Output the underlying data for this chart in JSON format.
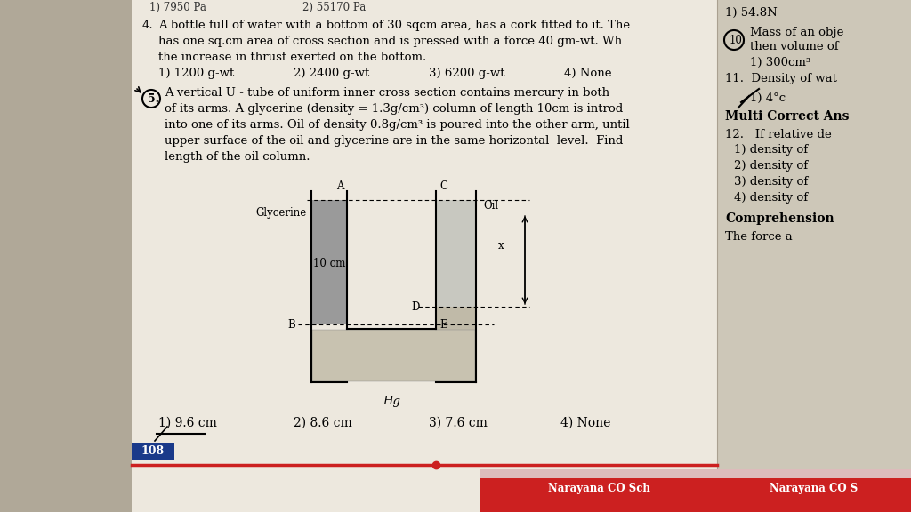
{
  "bg_main": "#d6cfc2",
  "bg_left_shadow": "#b0a898",
  "bg_right_col": "#cec8bb",
  "page_white": "#ede8de",
  "q4_line1": "A bottle full of water with a bottom of 30 sqcm area, has a cork fitted to it. The",
  "q4_line2": "has one sq.cm area of cross section and is pressed with a force 40 gm-wt. Wh",
  "q4_line3": "the increase in thrust exerted on the bottom.",
  "q4_a1": "1) 1200 g-wt",
  "q4_a2": "2) 2400 g-wt",
  "q4_a3": "3) 6200 g-wt",
  "q4_a4": "4) None",
  "q5_line1": "A vertical U - tube of uniform inner cross section contains mercury in both",
  "q5_line2": "of its arms. A glycerine (density = 1.3g/cm³) column of length 10cm is introd",
  "q5_line3": "into one of its arms. Oil of density 0.8g/cm³ is poured into the other arm, until",
  "q5_line4": "upper surface of the oil and glycerine are in the same horizontal  level.  Find",
  "q5_line5": "length of the oil column.",
  "ans1": "1) 9.6 cm",
  "ans2": "2) 8.6 cm",
  "ans3": "3) 7.6 cm",
  "ans4": "4) None",
  "page_num": "108",
  "rc_1": "1) 54.8N",
  "rc_10": "(10.)  Mass of an obje",
  "rc_10b": "then volume of",
  "rc_300": "1) 300cm³",
  "rc_11": "11.  Density of wat",
  "rc_4c": "1) 4°c",
  "rc_multi": "Multi Correct Ans",
  "rc_12": "12.   If relative de",
  "rc_d1": "1) density of",
  "rc_d2": "2) density of",
  "rc_d3": "3) density of",
  "rc_d4": "4) density of",
  "rc_comp": "Comprehension",
  "rc_force": "The force a",
  "nar1": "Narayana CO Sch",
  "nar2": "Narayana CO S",
  "top_line1": "1) 7950 Pa",
  "top_line2": "2) 55170 Pa"
}
